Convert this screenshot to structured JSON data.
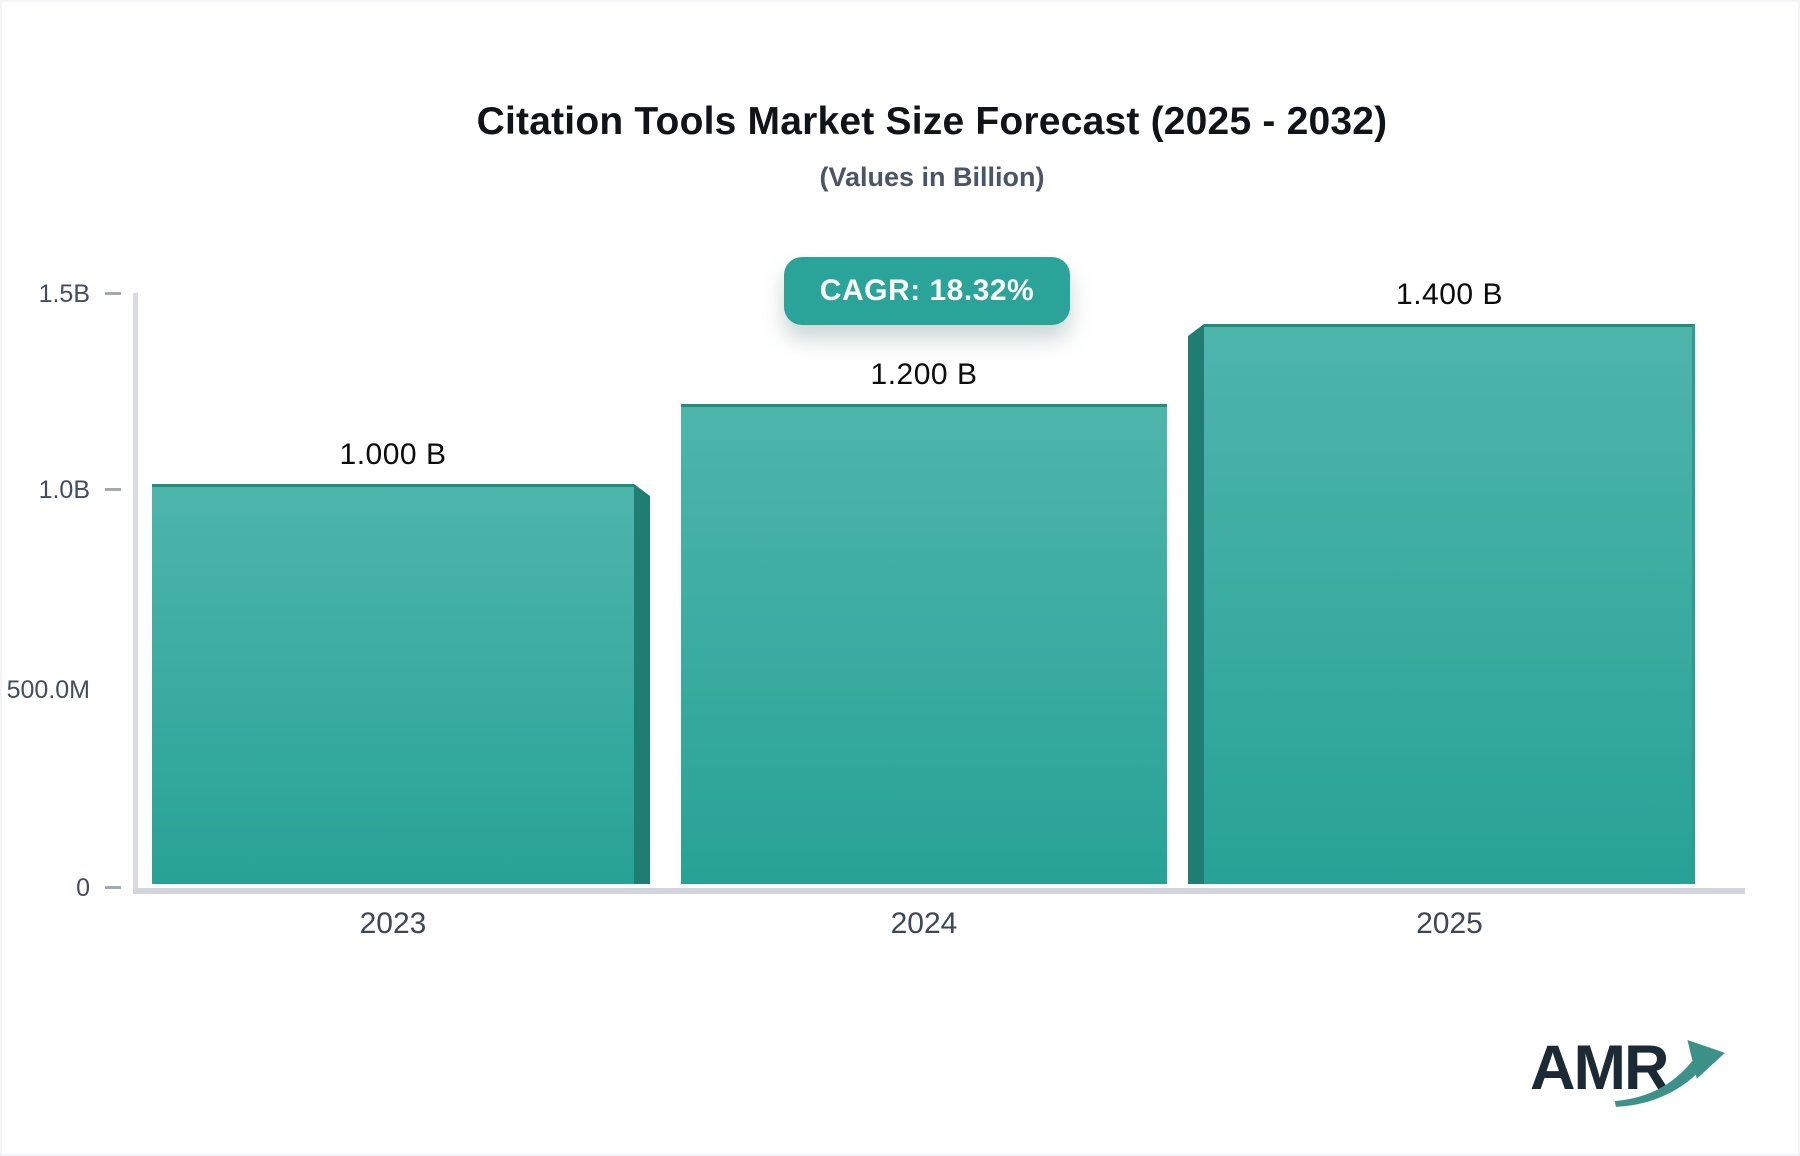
{
  "chart_data": {
    "type": "bar",
    "title": "Citation Tools Market Size Forecast (2025 - 2032)",
    "subtitle": "(Values in Billion)",
    "annotation": "CAGR: 18.32%",
    "categories": [
      "2023",
      "2024",
      "2025"
    ],
    "values": [
      1.0,
      1.2,
      1.4
    ],
    "value_labels": [
      "1.000 B",
      "1.200 B",
      "1.400 B"
    ],
    "xlabel": "",
    "ylabel": "",
    "ylim": [
      0,
      1.5
    ],
    "yticks": [
      {
        "label": "1.5B",
        "value": 1.5
      },
      {
        "label": "1.0B",
        "value": 1.0
      },
      {
        "label": "500.0M",
        "value": 0.5
      },
      {
        "label": "0",
        "value": 0
      }
    ],
    "grid": false,
    "legend": false,
    "bar_color_top": "#4EB5AB",
    "bar_color_bottom": "#28A296"
  },
  "logo": {
    "text": "AMR"
  },
  "colors": {
    "bar_gradient_top": "#4EB5AB",
    "bar_gradient_bottom": "#28A296",
    "bar_side_panel": "#1F7E71",
    "bar_top_edge": "#1F8D80",
    "badge_background": "#2AA499",
    "badge_text": "#FFFFFF",
    "axis_line": "#D9DBE1",
    "tick_text": "#424D60",
    "title_text": "#101418",
    "subtitle_text": "#4A5568",
    "logo_text": "#1C2A35",
    "logo_arrow": "#3C9289"
  }
}
